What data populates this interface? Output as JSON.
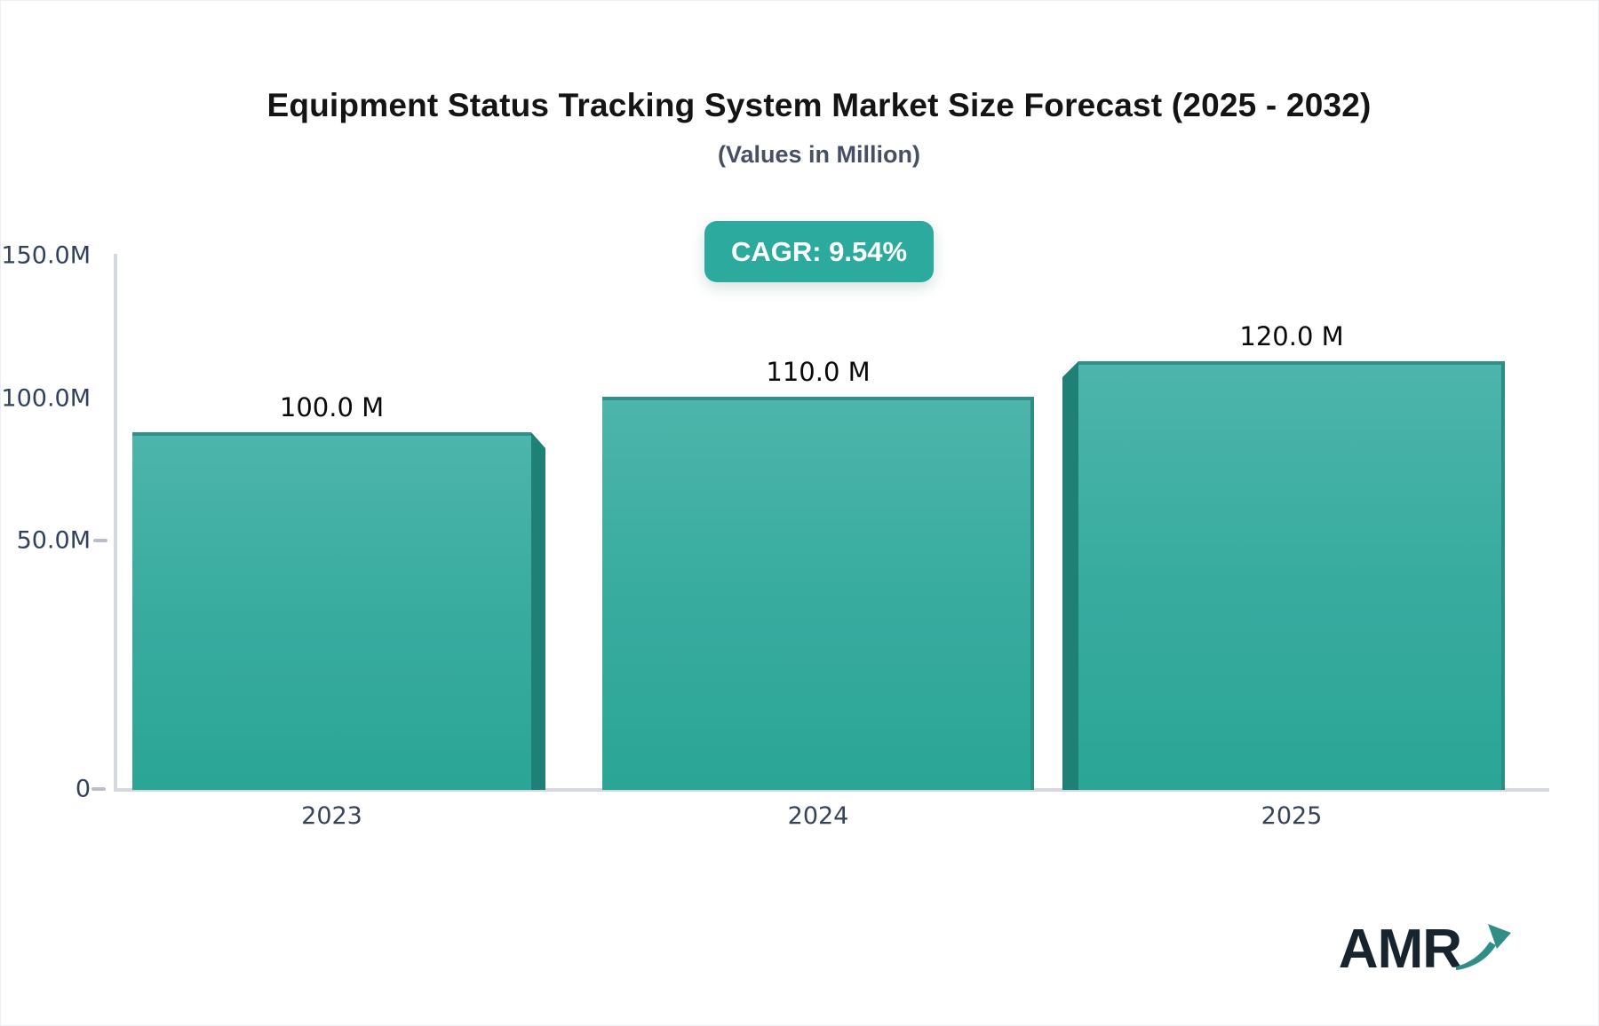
{
  "header": {
    "title": "Equipment Status Tracking System Market Size Forecast (2025 - 2032)",
    "subtitle": "(Values in Million)",
    "cagr_badge": "CAGR: 9.54%"
  },
  "logo": {
    "text": "AMR",
    "arrow_icon": "growth-arrow-icon"
  },
  "colors": {
    "bar_gradient_top": "#4db5ab",
    "bar_gradient_bottom": "#2aa596",
    "bar_side_3d": "#1f8075",
    "bar_border": "#2f9289",
    "badge_background": "#2baa9d",
    "badge_text": "#ffffff",
    "axis_line": "#d5d8de",
    "tick_text": "#33415c",
    "value_label_text": "#0a0a0a",
    "title_text": "#141414",
    "subtitle_text": "#475063",
    "logo_text": "#17242e",
    "logo_arrow": "#2f8f86"
  },
  "chart_data": {
    "type": "bar",
    "title": "Equipment Status Tracking System Market Size Forecast (2025 - 2032)",
    "subtitle": "(Values in Million)",
    "categories": [
      "2023",
      "2024",
      "2025"
    ],
    "values": [
      100.0,
      110.0,
      120.0
    ],
    "bar_labels": [
      "100.0 M",
      "110.0 M",
      "120.0 M"
    ],
    "unit": "Million",
    "cagr_annotation": "CAGR: 9.54%",
    "xlabel": "",
    "ylabel": "",
    "yticks": [
      "150.0M",
      "100.0M",
      "50.0M",
      "0"
    ],
    "ytick_values": [
      150,
      100,
      50,
      0
    ],
    "ylim": [
      0,
      150
    ],
    "grid": false,
    "legend": false,
    "bar_style": "3d-extruded-teal-gradient"
  }
}
